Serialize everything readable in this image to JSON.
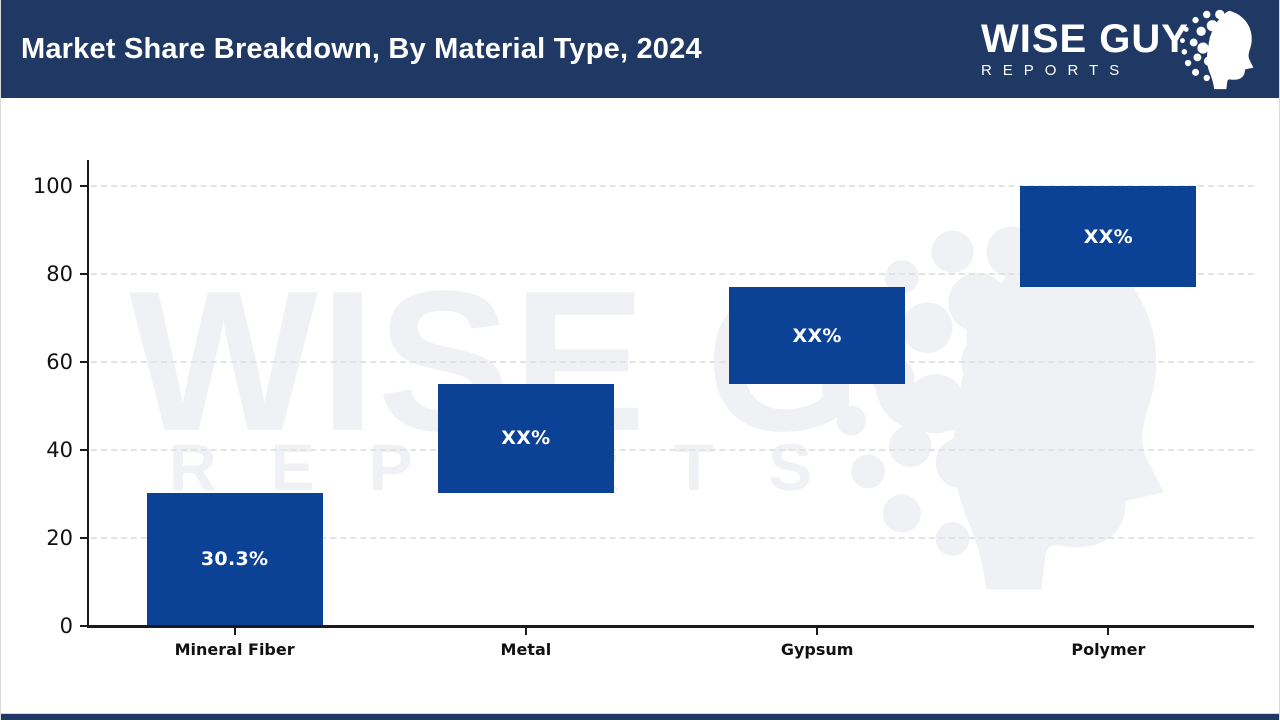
{
  "header": {
    "title": "Market Share Breakdown, By Material Type, 2024",
    "logo": {
      "line1": "WISE GUY",
      "line2": "REPORTS"
    }
  },
  "watermark": {
    "line1": "WISE GUY",
    "line2": "REPORTS"
  },
  "colors": {
    "header_bg": "#1f3864",
    "footer_bg": "#1f3864",
    "bar_blue": "#0b4295",
    "grid_gray": "#e3e3e3",
    "watermark_gray": "#f0f1f4"
  },
  "chart_data": {
    "type": "bar",
    "subtype": "waterfall",
    "title": "Market Share Breakdown, By Material Type, 2024",
    "categories": [
      "Mineral Fiber",
      "Metal",
      "Gypsum",
      "Polymer"
    ],
    "segments": [
      {
        "category": "Mineral Fiber",
        "start": 0,
        "end": 30.3,
        "label": "30.3%"
      },
      {
        "category": "Metal",
        "start": 30.3,
        "end": 55,
        "label": "XX%"
      },
      {
        "category": "Gypsum",
        "start": 55,
        "end": 77,
        "label": "XX%"
      },
      {
        "category": "Polymer",
        "start": 77,
        "end": 100,
        "label": "XX%"
      }
    ],
    "xlabel": "",
    "ylabel": "",
    "ylim": [
      0,
      100
    ],
    "yticks": [
      0,
      20,
      40,
      60,
      80,
      100
    ],
    "grid": "horizontal-dashed",
    "legend": "none",
    "bar_color": "#0b4295",
    "label_color": "#ffffff"
  }
}
